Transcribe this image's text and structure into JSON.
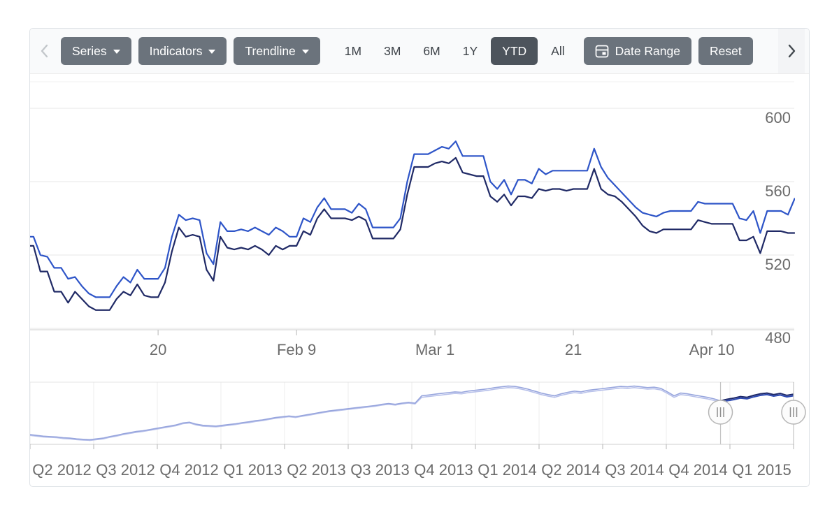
{
  "toolbar": {
    "series_label": "Series",
    "indicators_label": "Indicators",
    "trendline_label": "Trendline",
    "ranges": [
      "1M",
      "3M",
      "6M",
      "1Y",
      "YTD",
      "All"
    ],
    "selected_range": "YTD",
    "date_range_label": "Date Range",
    "reset_label": "Reset"
  },
  "chart_data": {
    "type": "line",
    "title": "",
    "grid": "horizontal",
    "y_ticks": [
      600,
      560,
      520,
      480
    ],
    "ylim": [
      479,
      615
    ],
    "x_tick_labels": [
      "20",
      "Feb 9",
      "Mar 1",
      "21",
      "Apr 10"
    ],
    "x_tick_positions": [
      19,
      39,
      59,
      79,
      99
    ],
    "series": [
      {
        "name": "series-close-a",
        "color": "#2e55c8",
        "values": [
          530,
          530,
          520,
          519,
          513,
          513,
          507,
          508,
          503,
          499,
          497,
          497,
          497,
          503,
          508,
          505,
          512,
          507,
          507,
          507,
          513,
          530,
          542,
          539,
          540,
          539,
          521,
          515,
          538,
          533,
          533,
          534,
          533,
          535,
          533,
          531,
          535,
          533,
          530,
          530,
          540,
          538,
          546,
          551,
          545,
          545,
          545,
          543,
          548,
          545,
          535,
          535,
          535,
          535,
          540,
          560,
          575,
          575,
          575,
          577,
          579,
          578,
          582,
          574,
          574,
          574,
          574,
          560,
          556,
          561,
          553,
          561,
          561,
          559,
          567,
          564,
          566,
          566,
          566,
          566,
          566,
          566,
          578,
          568,
          562,
          558,
          554,
          550,
          546,
          543,
          542,
          541,
          543,
          544,
          544,
          544,
          544,
          549,
          548,
          548,
          548,
          548,
          548,
          540,
          539,
          544,
          532,
          544,
          544,
          544,
          542,
          551
        ]
      },
      {
        "name": "series-close-b",
        "color": "#202a66",
        "values": [
          525,
          525,
          511,
          511,
          500,
          500,
          494,
          500,
          496,
          492,
          490,
          490,
          490,
          496,
          500,
          498,
          504,
          498,
          497,
          497,
          505,
          522,
          535,
          530,
          531,
          530,
          512,
          506,
          530,
          524,
          523,
          524,
          523,
          525,
          523,
          520,
          525,
          523,
          525,
          525,
          533,
          531,
          540,
          545,
          540,
          540,
          540,
          539,
          541,
          539,
          529,
          529,
          529,
          529,
          534,
          553,
          568,
          568,
          568,
          570,
          571,
          570,
          573,
          565,
          564,
          563,
          563,
          552,
          549,
          553,
          547,
          552,
          552,
          551,
          556,
          555,
          556,
          556,
          555,
          556,
          556,
          556,
          567,
          556,
          553,
          552,
          549,
          545,
          541,
          536,
          533,
          532,
          534,
          534,
          534,
          534,
          534,
          539,
          538,
          537,
          537,
          537,
          537,
          528,
          528,
          530,
          521,
          533,
          533,
          533,
          532,
          532
        ]
      }
    ],
    "navigator": {
      "quarter_labels": [
        "Q2 2012",
        "Q3 2012",
        "Q4 2012",
        "Q1 2013",
        "Q2 2013",
        "Q3 2013",
        "Q4 2013",
        "Q1 2014",
        "Q2 2014",
        "Q3 2014",
        "Q4 2014",
        "Q1 2015"
      ],
      "ylim": [
        480,
        640
      ],
      "values": [
        505,
        503,
        501,
        500,
        499,
        497,
        496,
        494,
        493,
        492,
        494,
        496,
        500,
        503,
        507,
        510,
        513,
        515,
        518,
        521,
        524,
        527,
        530,
        535,
        537,
        532,
        529,
        528,
        527,
        529,
        531,
        533,
        536,
        538,
        541,
        543,
        546,
        549,
        551,
        553,
        551,
        554,
        557,
        560,
        563,
        566,
        568,
        570,
        572,
        574,
        576,
        578,
        580,
        583,
        585,
        583,
        586,
        588,
        586,
        605,
        607,
        609,
        611,
        613,
        615,
        614,
        617,
        619,
        621,
        623,
        626,
        628,
        630,
        629,
        626,
        622,
        617,
        612,
        608,
        605,
        610,
        614,
        617,
        615,
        619,
        621,
        623,
        625,
        627,
        629,
        628,
        630,
        628,
        626,
        627,
        624,
        615,
        605,
        612,
        610,
        607,
        604,
        601,
        597,
        592,
        596,
        599,
        603,
        601,
        606,
        610,
        612,
        608,
        611,
        606,
        609
      ],
      "values2": [
        503,
        501,
        499,
        498,
        497,
        495,
        494,
        492,
        491,
        490,
        492,
        494,
        498,
        501,
        505,
        508,
        511,
        513,
        516,
        519,
        522,
        525,
        528,
        533,
        535,
        530,
        527,
        526,
        525,
        527,
        529,
        531,
        534,
        536,
        539,
        541,
        544,
        547,
        549,
        551,
        549,
        552,
        555,
        558,
        561,
        564,
        566,
        568,
        570,
        572,
        574,
        576,
        578,
        581,
        583,
        581,
        584,
        586,
        584,
        601,
        603,
        605,
        607,
        609,
        611,
        610,
        613,
        615,
        617,
        619,
        622,
        624,
        626,
        625,
        622,
        618,
        613,
        608,
        604,
        601,
        606,
        610,
        613,
        611,
        615,
        617,
        619,
        621,
        623,
        625,
        624,
        626,
        624,
        622,
        623,
        620,
        611,
        601,
        608,
        606,
        603,
        600,
        597,
        593,
        588,
        592,
        595,
        599,
        597,
        602,
        606,
        608,
        604,
        607,
        602,
        605
      ],
      "selection_start_index": 104,
      "selection_end_index": 115
    },
    "colors": {
      "grid": "#e7e7e7",
      "grid_faint": "#f2f2f2",
      "axis_line": "#cfcfcf",
      "tick": "#b5b5b5",
      "label": "#6b6b6b",
      "nav_light_1": "#97a5dd",
      "nav_light_2": "#b7c0ea",
      "nav_dark_1": "#2c49b2",
      "nav_dark_2": "#1d2869",
      "handle_fill": "#fcfcfc",
      "handle_border": "#b6b6b6",
      "handle_grip": "#8f8f8f",
      "selection_border": "#c4c4c4"
    }
  }
}
